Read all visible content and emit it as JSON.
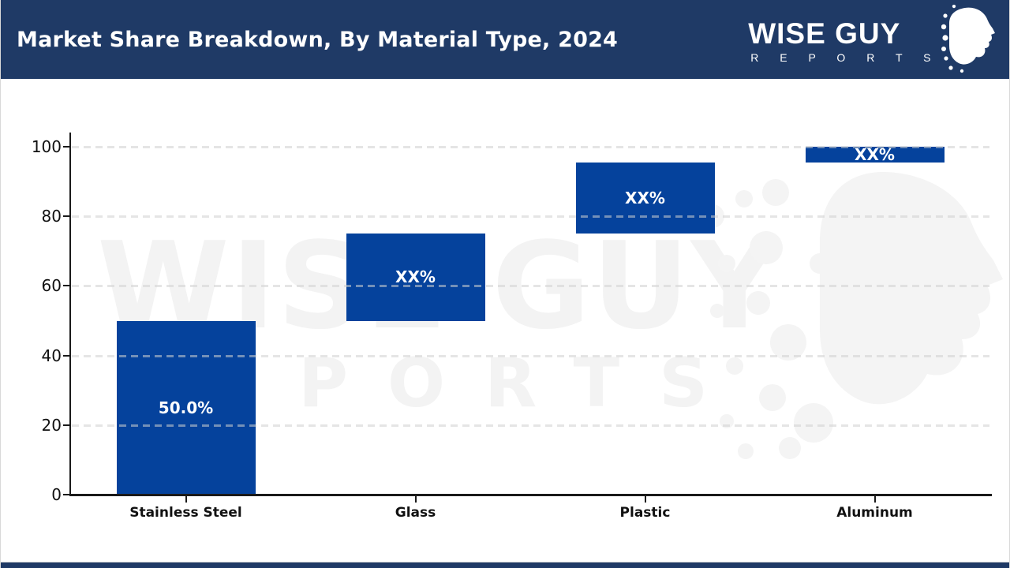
{
  "header": {
    "title": "Market Share Breakdown, By Material Type, 2024",
    "bg_color": "#1F3A66",
    "title_color": "#FFFFFF"
  },
  "logo": {
    "line1": "WISE GUY",
    "line2": "R E P O R T S",
    "head_icon": "dotted-head-profile"
  },
  "watermark": {
    "line1": "WISE GUY",
    "line2": "REPORTS",
    "head_icon": "dotted-head-profile",
    "color": "#F3F3F3"
  },
  "chart_data": {
    "type": "bar",
    "subtype": "waterfall",
    "title": "Market Share Breakdown, By Material Type, 2024",
    "categories": [
      "Stainless Steel",
      "Glass",
      "Plastic",
      "Aluminum"
    ],
    "segments": [
      {
        "category": "Stainless Steel",
        "start": 0,
        "end": 50,
        "label": "50.0%"
      },
      {
        "category": "Glass",
        "start": 50,
        "end": 75,
        "label": "XX%"
      },
      {
        "category": "Plastic",
        "start": 75,
        "end": 95.5,
        "label": "XX%"
      },
      {
        "category": "Aluminum",
        "start": 95.5,
        "end": 100,
        "label": "XX%"
      }
    ],
    "xlabel": "",
    "ylabel": "",
    "ylim": [
      0,
      100
    ],
    "yticks": [
      0,
      20,
      40,
      60,
      80,
      100
    ],
    "grid": "horizontal-dashed",
    "legend": "none",
    "bar_color": "#05429C",
    "bar_label_color": "#FFFFFF",
    "axis_color": "#1A1A1A"
  }
}
